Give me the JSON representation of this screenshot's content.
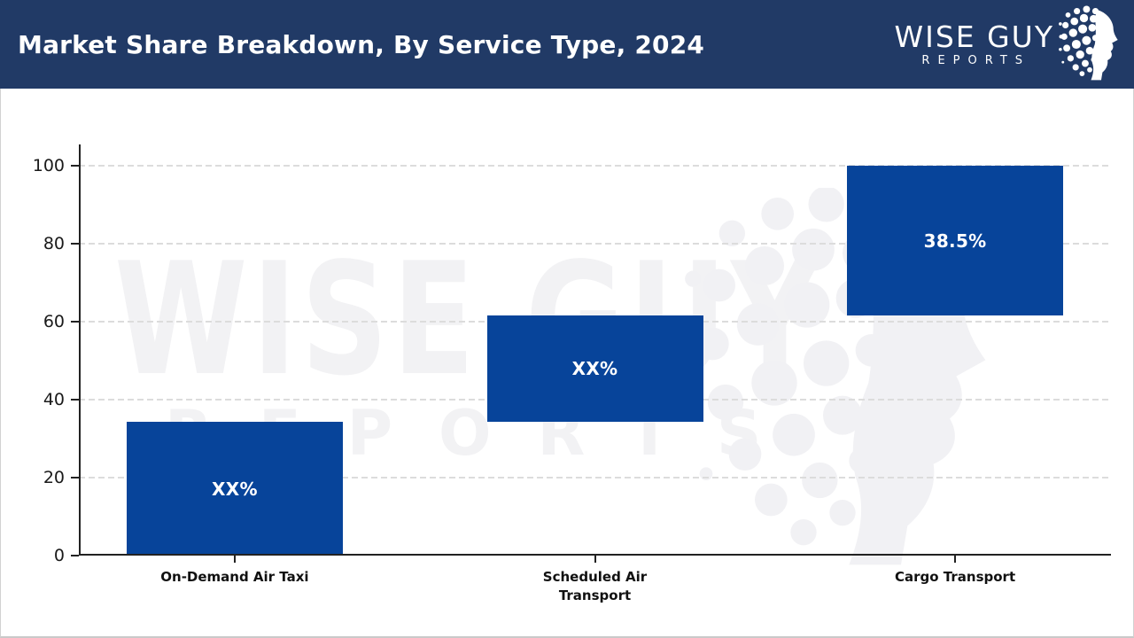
{
  "header": {
    "title": "Market Share Breakdown, By Service Type, 2024",
    "bg_color": "#213A66",
    "logo": {
      "name": "WISE GUY",
      "sub": "REPORTS"
    }
  },
  "watermark": {
    "line1": "WISE GUY",
    "line2": "REPORTS"
  },
  "chart_data": {
    "type": "bar",
    "subtype": "floating-segment-waterfall",
    "title": "Market Share Breakdown, By Service Type, 2024",
    "xlabel": "",
    "ylabel": "",
    "categories": [
      "On-Demand Air Taxi",
      "Scheduled Air Transport",
      "Cargo Transport"
    ],
    "bars": [
      {
        "category_lines": [
          "On-Demand Air Taxi"
        ],
        "start": 0,
        "end": 34.3,
        "label": "XX%"
      },
      {
        "category_lines": [
          "Scheduled Air",
          "Transport"
        ],
        "start": 34.3,
        "end": 61.5,
        "label": "XX%"
      },
      {
        "category_lines": [
          "Cargo Transport"
        ],
        "start": 61.5,
        "end": 100,
        "label": "38.5%"
      }
    ],
    "ylim": [
      0,
      100
    ],
    "yticks": [
      0,
      20,
      40,
      60,
      80,
      100
    ],
    "grid": {
      "axis": "y",
      "style": "dashed",
      "color": "#dcdcdc"
    },
    "bar_color": "#07449A",
    "bar_label_color": "#ffffff",
    "axis_color": "#222222",
    "legend": "none"
  }
}
